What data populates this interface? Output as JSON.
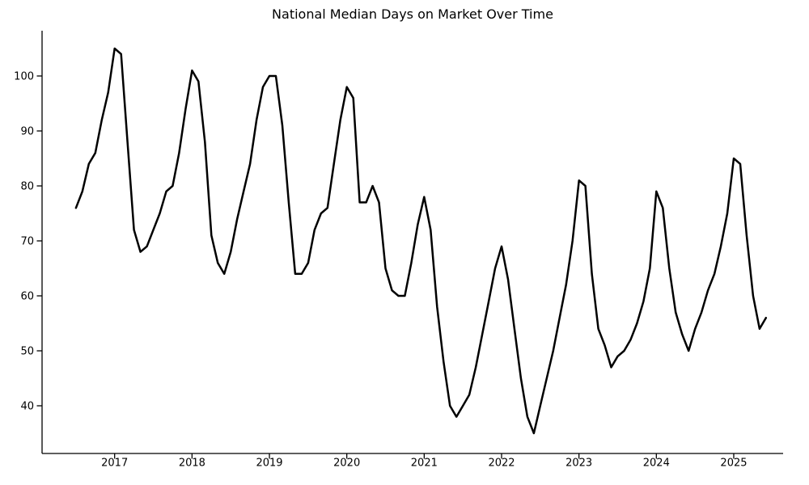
{
  "chart_data": {
    "type": "line",
    "title": "National Median Days on Market Over Time",
    "xlabel": "",
    "ylabel": "",
    "grid": false,
    "legend": "none",
    "background": "#ffffff",
    "line_color": "#000000",
    "axis_color": "#000000",
    "x_ticks": [
      2017,
      2018,
      2019,
      2020,
      2021,
      2022,
      2023,
      2024,
      2025
    ],
    "y_ticks": [
      40,
      50,
      60,
      70,
      80,
      90,
      100
    ],
    "ylim": [
      31,
      108
    ],
    "x_start": "2016-07",
    "x_end": "2025-06",
    "frequency": "monthly",
    "series": [
      {
        "name": "National Median Days on Market",
        "values": [
          76,
          79,
          84,
          86,
          92,
          97,
          105,
          104,
          88,
          72,
          68,
          69,
          72,
          75,
          79,
          80,
          86,
          94,
          101,
          99,
          88,
          71,
          66,
          64,
          68,
          74,
          79,
          84,
          92,
          98,
          100,
          100,
          91,
          77,
          64,
          64,
          66,
          72,
          75,
          76,
          84,
          92,
          98,
          96,
          77,
          77,
          80,
          77,
          65,
          61,
          60,
          60,
          66,
          73,
          78,
          72,
          58,
          48,
          40,
          38,
          40,
          42,
          47,
          53,
          59,
          65,
          69,
          63,
          54,
          45,
          38,
          35,
          40,
          45,
          50,
          56,
          62,
          70,
          81,
          80,
          64,
          54,
          51,
          47,
          49,
          50,
          52,
          55,
          59,
          65,
          79,
          76,
          65,
          57,
          53,
          50,
          54,
          57,
          61,
          64,
          69,
          75,
          85,
          84,
          71,
          60,
          54,
          56
        ]
      }
    ]
  }
}
